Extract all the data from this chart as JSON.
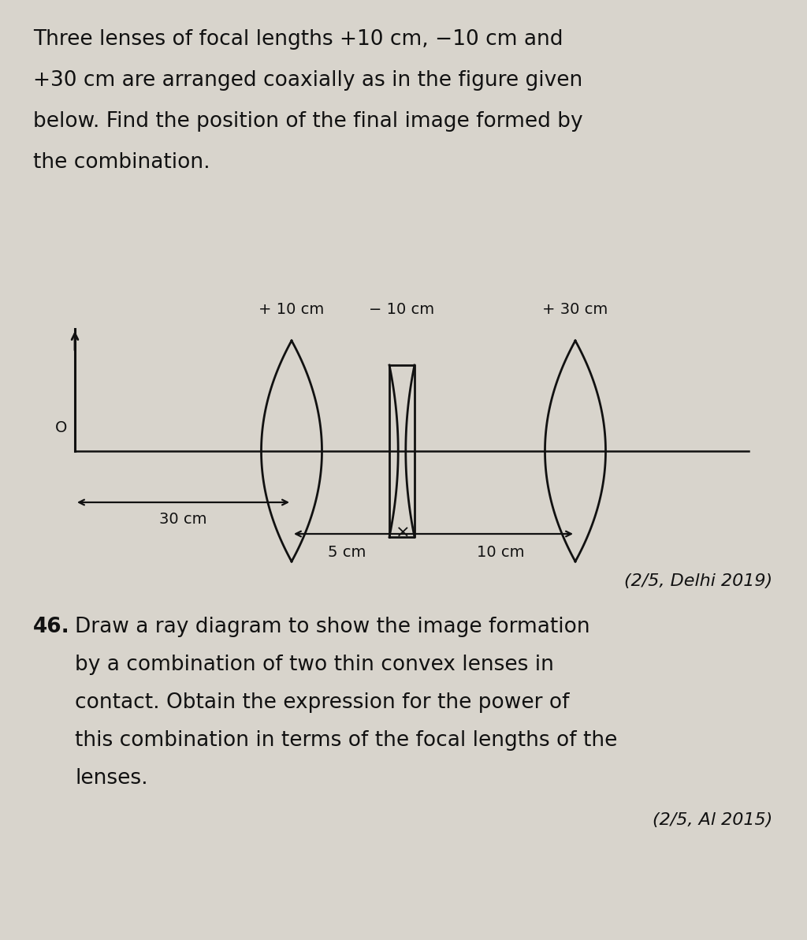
{
  "bg_color": "#d8d4cc",
  "text_color": "#111111",
  "title_line1": "Three lenses of focal lengths +10 cm, −10 cm and",
  "title_line2": "+30 cm are arranged coaxially as in the figure given",
  "title_line3": "below. Find the position of the final image formed by",
  "title_line4": "the combination.",
  "title_fontsize": 19,
  "lens1_label": "+ 10 cm",
  "lens2_label": "− 10 cm",
  "lens3_label": "+ 30 cm",
  "label_fontsize": 14,
  "source_label": "O",
  "dim1_label": "30 cm",
  "dim2_label": "5 cm",
  "dim3_label": "10 cm",
  "citation1": "(2/5, Delhi 2019)",
  "q46_num": "46.",
  "q46_line1": "Draw a ray diagram to show the image formation",
  "q46_line2": "by a combination of two thin convex lenses in",
  "q46_line3": "contact. Obtain the expression for the power of",
  "q46_line4": "this combination in terms of the focal lengths of the",
  "q46_line5": "lenses.",
  "citation2": "(2/5, Al 2015)",
  "q46_fontsize": 19,
  "citation_fontsize": 16
}
